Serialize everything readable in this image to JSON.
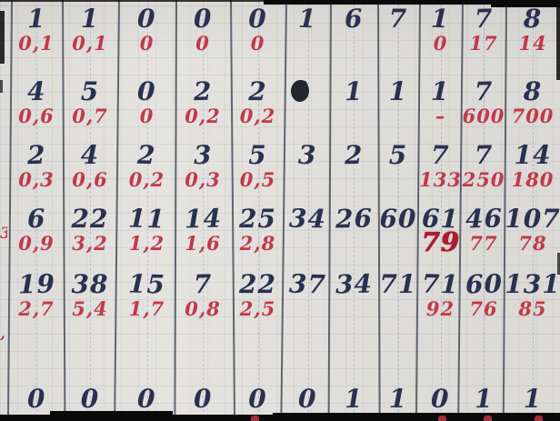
{
  "page": {
    "kind": "handwritten-ledger-photo",
    "paper_color": "#e4e3df",
    "rule_line_color": "#484e5c",
    "ink_blue": "#2b3050",
    "ink_red": "#c2394a",
    "ink_red_bold": "#ad1b2e",
    "columns": 11,
    "visible_rows": 6
  },
  "table": {
    "rows": [
      {
        "cells": [
          {
            "top": "1",
            "red": "0,1"
          },
          {
            "top": "1",
            "red": "0,1"
          },
          {
            "top": "0",
            "red": "0"
          },
          {
            "top": "0",
            "red": "0"
          },
          {
            "top": "0",
            "red": "0"
          },
          {
            "top": "1",
            "red": ""
          },
          {
            "top": "6",
            "red": ""
          },
          {
            "top": "7",
            "red": ""
          },
          {
            "top": "1",
            "red": "0"
          },
          {
            "top": "7",
            "red": "17"
          },
          {
            "top": "8",
            "red": "14"
          }
        ]
      },
      {
        "cells": [
          {
            "top": "4",
            "red": "0,6"
          },
          {
            "top": "5",
            "red": "0,7"
          },
          {
            "top": "0",
            "red": "0"
          },
          {
            "top": "2",
            "red": "0,2"
          },
          {
            "top": "2",
            "red": "0,2"
          },
          {
            "top": "0",
            "red": "",
            "scribbled": true
          },
          {
            "top": "1",
            "red": ""
          },
          {
            "top": "1",
            "red": ""
          },
          {
            "top": "1",
            "red": "–"
          },
          {
            "top": "7",
            "red": "600"
          },
          {
            "top": "8",
            "red": "700"
          }
        ]
      },
      {
        "cells": [
          {
            "top": "2",
            "red": "0,3"
          },
          {
            "top": "4",
            "red": "0,6"
          },
          {
            "top": "2",
            "red": "0,2"
          },
          {
            "top": "3",
            "red": "0,3"
          },
          {
            "top": "5",
            "red": "0,5"
          },
          {
            "top": "3",
            "red": ""
          },
          {
            "top": "2",
            "red": ""
          },
          {
            "top": "5",
            "red": ""
          },
          {
            "top": "7",
            "red": "133"
          },
          {
            "top": "7",
            "red": "250"
          },
          {
            "top": "14",
            "red": "180"
          }
        ]
      },
      {
        "cells": [
          {
            "top": "6",
            "red": "0,9"
          },
          {
            "top": "22",
            "red": "3,2"
          },
          {
            "top": "11",
            "red": "1,2"
          },
          {
            "top": "14",
            "red": "1,6"
          },
          {
            "top": "25",
            "red": "2,8"
          },
          {
            "top": "34",
            "red": ""
          },
          {
            "top": "26",
            "red": ""
          },
          {
            "top": "60",
            "red": ""
          },
          {
            "top": "61",
            "red": "79",
            "bold_red": true
          },
          {
            "top": "46",
            "red": "77"
          },
          {
            "top": "107",
            "red": "78"
          }
        ]
      },
      {
        "cells": [
          {
            "top": "19",
            "red": "2,7"
          },
          {
            "top": "38",
            "red": "5,4"
          },
          {
            "top": "15",
            "red": "1,7"
          },
          {
            "top": "7",
            "red": "0,8"
          },
          {
            "top": "22",
            "red": "2,5"
          },
          {
            "top": "37",
            "red": ""
          },
          {
            "top": "34",
            "red": ""
          },
          {
            "top": "71",
            "red": ""
          },
          {
            "top": "71",
            "red": "92"
          },
          {
            "top": "60",
            "red": "76"
          },
          {
            "top": "131",
            "red": "85"
          }
        ]
      },
      {
        "cells": [
          {
            "top": "0",
            "red": ""
          },
          {
            "top": "0",
            "red": ""
          },
          {
            "top": "0",
            "red": ""
          },
          {
            "top": "0",
            "red": ""
          },
          {
            "top": "0",
            "red": ""
          },
          {
            "top": "0",
            "red": ""
          },
          {
            "top": "1",
            "red": ""
          },
          {
            "top": "1",
            "red": ""
          },
          {
            "top": "0",
            "red": ""
          },
          {
            "top": "1",
            "red": ""
          },
          {
            "top": "1",
            "red": ""
          }
        ]
      }
    ]
  },
  "edge_fragments": {
    "left_row4_red": "3",
    "left_row5_red": ","
  }
}
